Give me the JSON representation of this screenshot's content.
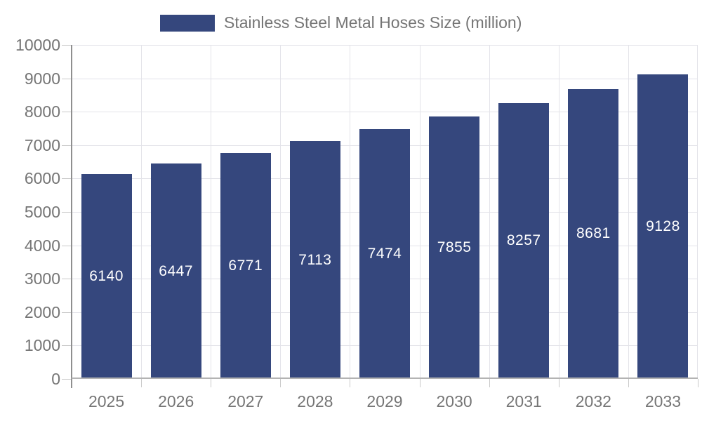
{
  "chart_data": {
    "type": "bar",
    "title": "",
    "categories": [
      "2025",
      "2026",
      "2027",
      "2028",
      "2029",
      "2030",
      "2031",
      "2032",
      "2033"
    ],
    "series": [
      {
        "name": "Stainless Steel Metal Hoses Size (million)",
        "values": [
          6140,
          6447,
          6771,
          7113,
          7474,
          7855,
          8257,
          8681,
          9128
        ]
      }
    ],
    "value_labels_shown": true,
    "xlabel": "",
    "ylabel": "",
    "ylim": [
      0,
      10000
    ],
    "ytick_step": 1000,
    "grid": true,
    "legend_position": "top"
  },
  "colors": {
    "bar": "#35477d",
    "value_label": "#ffffff",
    "grid": "#e3e3e9",
    "axis_line": "#8f8f8f",
    "baseline": "#b3b3b3",
    "tick": "#c9c9c9",
    "text": "#757575",
    "background": "#ffffff"
  }
}
